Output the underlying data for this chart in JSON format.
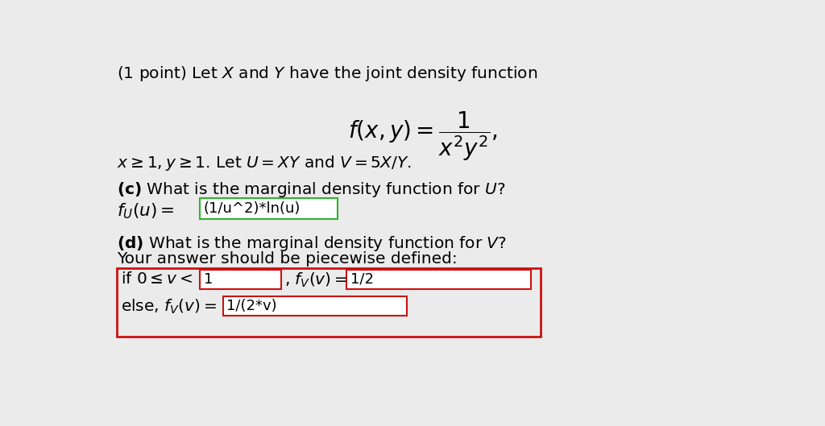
{
  "background_color": "#ebebeb",
  "title_text": "(1 point) Let $X$ and $Y$ have the joint density function",
  "formula": "$f(x, y) = \\dfrac{1}{x^2y^2},$",
  "condition_text": "$x \\geq 1, y \\geq 1$. Let $U = XY$ and $V = 5X/Y$.",
  "part_c_bold": "(c)",
  "part_c_text": " What is the marginal density function for $U$?",
  "part_c_answer_label": "$f_U(u) =$",
  "part_c_answer": "(1/u^2)*ln(u)",
  "part_c_box_color": "#2db52d",
  "part_d_bold": "(d)",
  "part_d_text": " What is the marginal density function for $V$?",
  "part_d_sub": "Your answer should be piecewise defined:",
  "part_d_if_text": "if $0 \\leq v <$",
  "part_d_if_box1": "1",
  "part_d_fv_text": ", $f_V(v) =$",
  "part_d_if_box2": "1/2",
  "part_d_else_text": "else, $f_V(v) =$",
  "part_d_else_box": "1/(2*v)",
  "part_d_box_color": "#cc1111",
  "white_box_color": "#ffffff",
  "font_size_main": 14.5,
  "font_size_formula": 20
}
